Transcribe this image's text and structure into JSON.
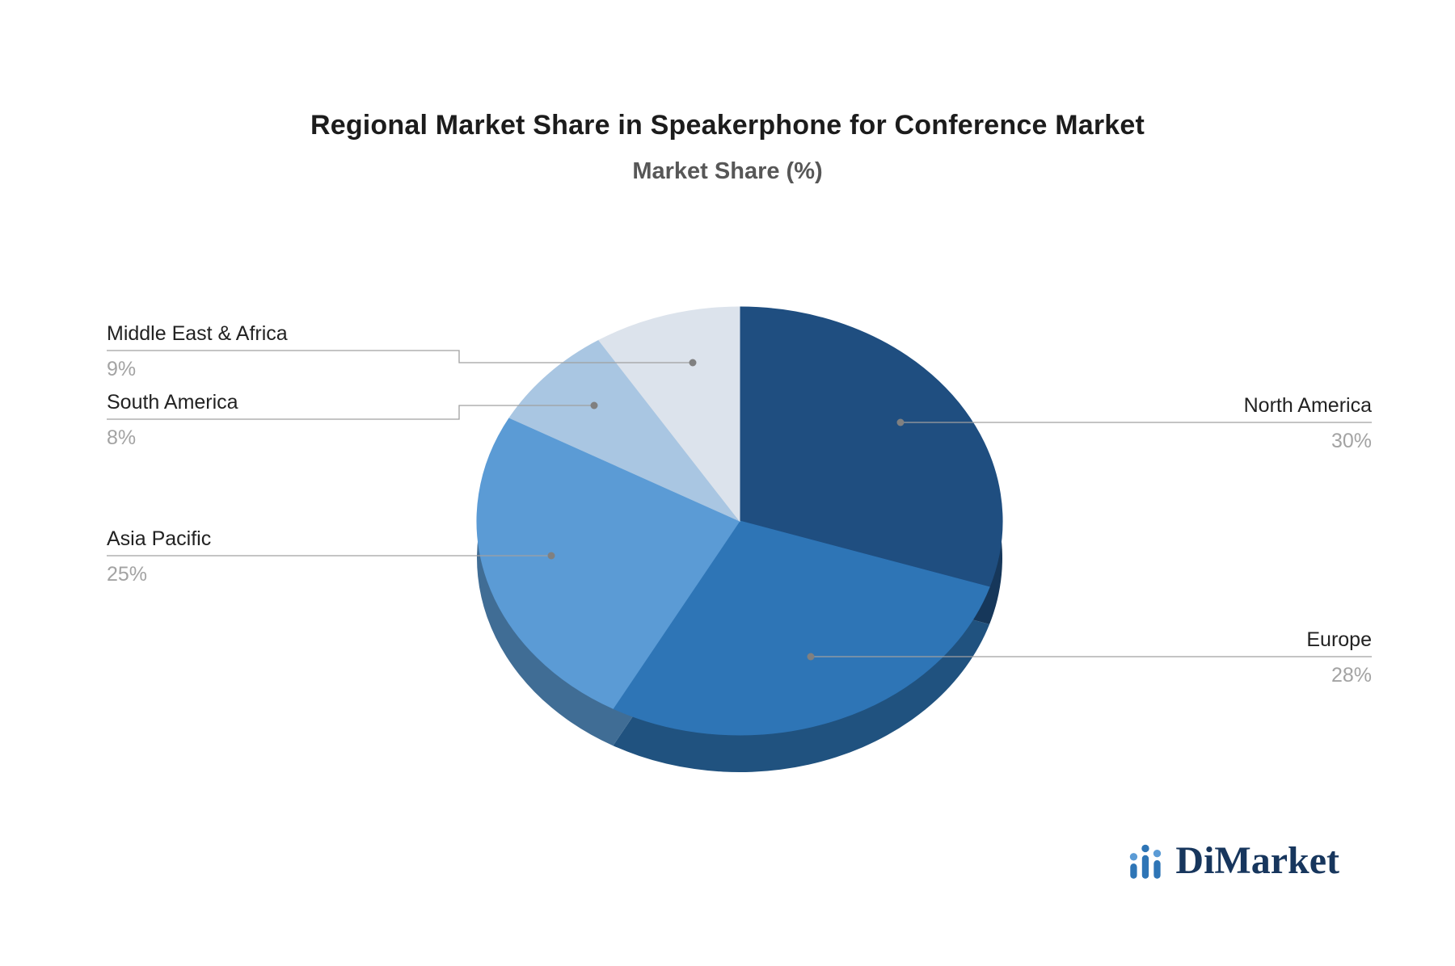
{
  "chart_data": {
    "type": "pie",
    "title": "Regional Market Share in Speakerphone for Conference Market",
    "subtitle": "Market Share (%)",
    "unit": "%",
    "style": "3d",
    "start_angle_deg": 0,
    "direction": "clockwise",
    "legend_position": "none",
    "slices": [
      {
        "label": "North America",
        "value": 30,
        "display": "30%",
        "color": "#1F4E80"
      },
      {
        "label": "Europe",
        "value": 28,
        "display": "28%",
        "color": "#2E75B6"
      },
      {
        "label": "Asia Pacific",
        "value": 25,
        "display": "25%",
        "color": "#5B9BD5"
      },
      {
        "label": "South America",
        "value": 8,
        "display": "8%",
        "color": "#A9C6E2"
      },
      {
        "label": "Middle East & Africa",
        "value": 9,
        "display": "9%",
        "color": "#DCE3EC"
      }
    ],
    "leader_line_color": "#a0a0a0",
    "leader_dot_color": "#808080"
  },
  "branding": {
    "logo_text": "DiMarket",
    "logo_icon": "bar-chart-icon",
    "logo_text_color": "#17365d",
    "logo_icon_color": "#2e75b6"
  }
}
